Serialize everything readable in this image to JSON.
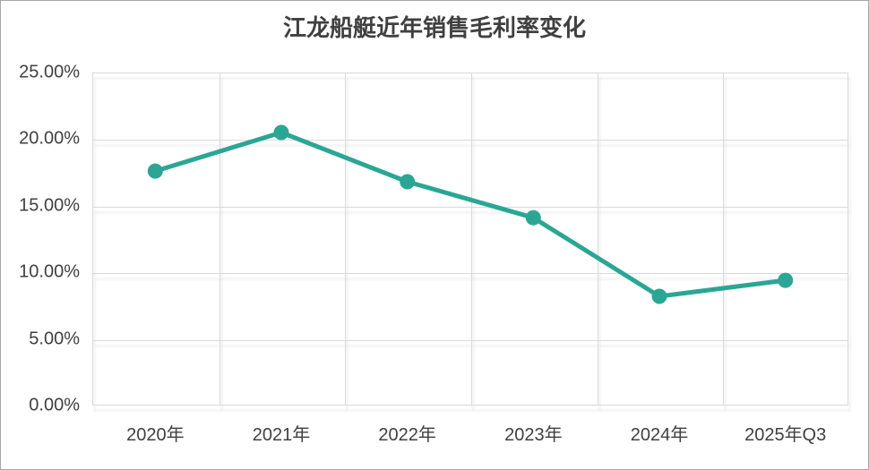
{
  "title": "江龙船艇近年销售毛利率变化",
  "colors": {
    "line": "#2BA694",
    "marker": "#2BA694",
    "grid": "#D9D9D9",
    "text": "#404040",
    "frame": "#A6A6A6"
  },
  "chart_data": {
    "type": "line",
    "title": "江龙船艇近年销售毛利率变化",
    "categories": [
      "2020年",
      "2021年",
      "2022年",
      "2023年",
      "2024年",
      "2025年Q3"
    ],
    "values": [
      17.6,
      20.5,
      16.8,
      14.1,
      8.2,
      9.4
    ],
    "unit": "%",
    "xlabel": "",
    "ylabel": "",
    "ylim": [
      0,
      25
    ],
    "yticks": [
      {
        "value": 25,
        "label": "25.00%"
      },
      {
        "value": 20,
        "label": "20.00%"
      },
      {
        "value": 15,
        "label": "15.00%"
      },
      {
        "value": 10,
        "label": "10.00%"
      },
      {
        "value": 5,
        "label": "5.00%"
      },
      {
        "value": 0,
        "label": "0.00%"
      }
    ],
    "grid": true,
    "legend": "none",
    "marker": "circle"
  }
}
